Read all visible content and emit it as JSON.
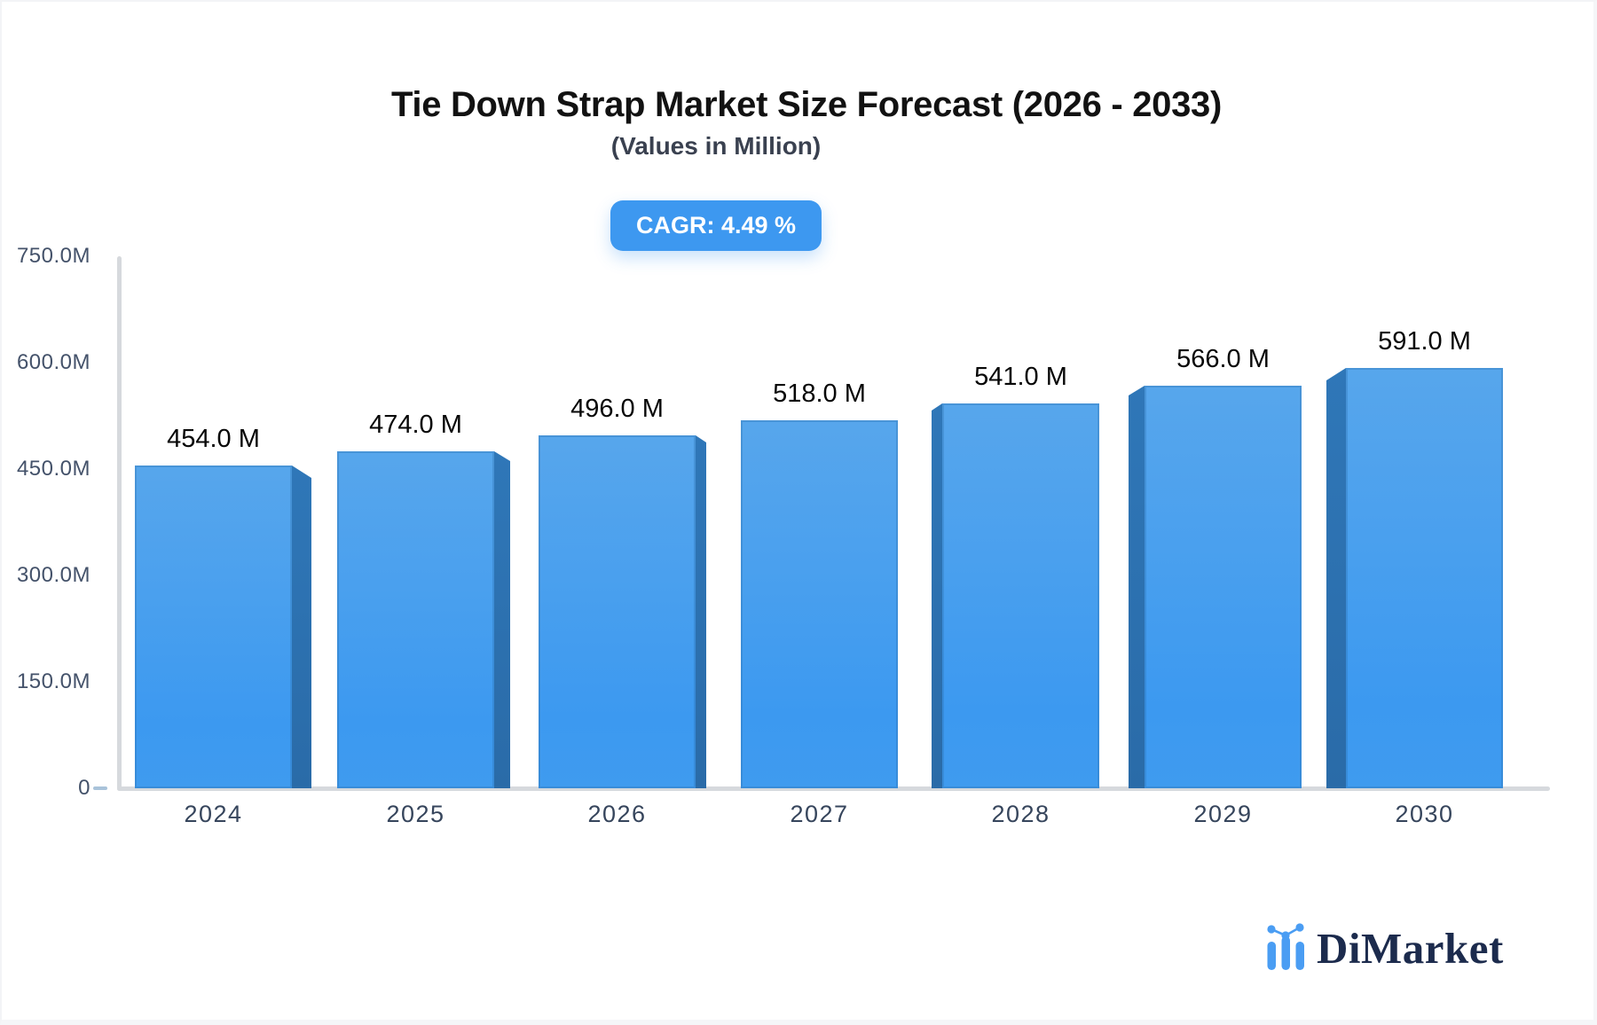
{
  "header": {
    "title": "Tie Down Strap Market Size Forecast (2026 - 2033)",
    "subtitle": "(Values in Million)",
    "cagr_label": "CAGR: 4.49 %"
  },
  "chart_data": {
    "type": "bar",
    "title": "Tie Down Strap Market Size Forecast (2026 - 2033)",
    "subtitle": "(Values in Million)",
    "unit": "Million",
    "cagr_percent": 4.49,
    "categories": [
      "2024",
      "2025",
      "2026",
      "2027",
      "2028",
      "2029",
      "2030"
    ],
    "values": [
      454,
      474,
      496,
      518,
      541,
      566,
      591
    ],
    "value_labels": [
      "454.0 M",
      "474.0 M",
      "496.0 M",
      "518.0 M",
      "541.0 M",
      "566.0 M",
      "591.0 M"
    ],
    "y_axis": {
      "ticks": [
        {
          "label": "750.0M",
          "value": 750
        },
        {
          "label": "600.0M",
          "value": 600
        },
        {
          "label": "450.0M",
          "value": 450
        },
        {
          "label": "300.0M",
          "value": 300
        },
        {
          "label": "150.0M",
          "value": 150
        },
        {
          "label": "0",
          "value": 0
        }
      ],
      "ylim": [
        0,
        750
      ]
    },
    "grid": false,
    "legend_position": "none",
    "bar_color": "#3E99F0",
    "bar_side_color": "#2E74B4"
  },
  "branding": {
    "logo_text": "DiMarket",
    "logo_icon": "dimarket-bar-chart-icon"
  },
  "colors": {
    "accent_blue": "#3D98F0",
    "axis_gray": "#D6D9DD",
    "y_tick_text": "#44526A",
    "category_text": "#36455C",
    "value_text": "#070707",
    "logo_navy": "#1C2B4D",
    "logo_blue": "#4A9DF3"
  }
}
